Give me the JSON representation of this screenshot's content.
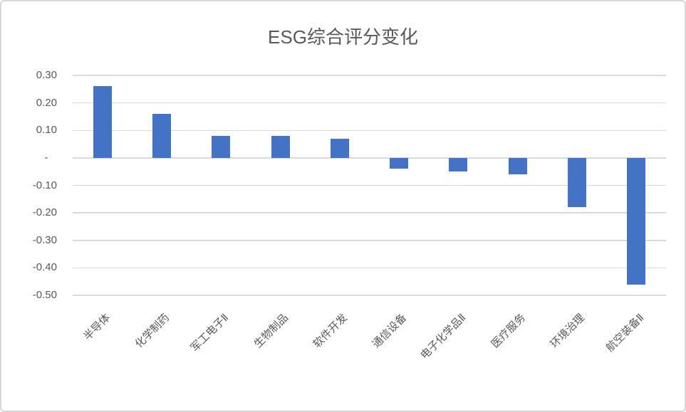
{
  "chart_data": {
    "type": "bar",
    "title": "ESG综合评分变化",
    "categories": [
      "半导体",
      "化学制药",
      "军工电子Ⅱ",
      "生物制品",
      "软件开发",
      "通信设备",
      "电子化学品Ⅱ",
      "医疗服务",
      "环境治理",
      "航空装备Ⅱ"
    ],
    "values": [
      0.26,
      0.16,
      0.08,
      0.08,
      0.07,
      -0.04,
      -0.05,
      -0.06,
      -0.18,
      -0.46
    ],
    "xlabel": "",
    "ylabel": "",
    "ylim": [
      -0.5,
      0.3
    ],
    "ytick_step": 0.1,
    "ytick_labels": [
      "0.30",
      "0.20",
      "0.10",
      "-   ",
      "-0.10",
      "-0.20",
      "-0.30",
      "-0.40",
      "-0.50"
    ],
    "grid": true,
    "legend": "none",
    "bar_color": "#4472c4",
    "gridline_color": "#d9d9d9",
    "text_color": "#595959"
  }
}
